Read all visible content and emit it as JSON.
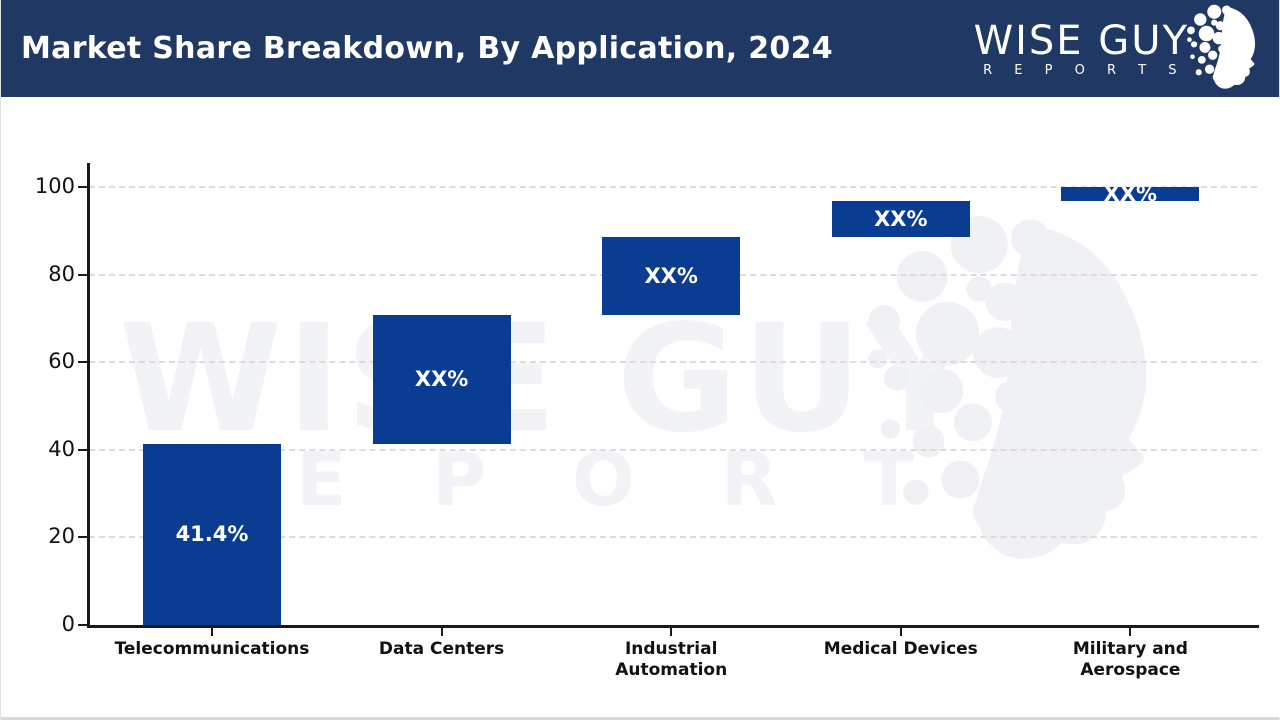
{
  "header": {
    "title": "Market Share Breakdown, By Application, 2024",
    "logo": {
      "brand_line1": "WISE GUY",
      "brand_line2": "R E P O R T S"
    }
  },
  "watermark": {
    "line1": "WISE GUY",
    "line2": "R E P O R T S"
  },
  "chart_data": {
    "type": "bar",
    "subtype": "waterfall",
    "title": "Market Share Breakdown, By Application, 2024",
    "categories": [
      "Telecommunications",
      "Data Centers",
      "Industrial Automation",
      "Medical Devices",
      "Military and Aerospace"
    ],
    "bars": [
      {
        "category": "Telecommunications",
        "tick_label": "Telecommunications",
        "start": 0,
        "end": 41.4,
        "value": 41.4,
        "label": "41.4%"
      },
      {
        "category": "Data Centers",
        "tick_label": "Data Centers",
        "start": 41.4,
        "end": 70.8,
        "value": 29.4,
        "label": "XX%"
      },
      {
        "category": "Industrial Automation",
        "tick_label": "Industrial\nAutomation",
        "start": 70.8,
        "end": 88.6,
        "value": 17.8,
        "label": "XX%"
      },
      {
        "category": "Medical Devices",
        "tick_label": "Medical Devices",
        "start": 88.6,
        "end": 96.8,
        "value": 8.2,
        "label": "XX%"
      },
      {
        "category": "Military and Aerospace",
        "tick_label": "Military and\nAerospace",
        "start": 96.8,
        "end": 100,
        "value": 3.2,
        "label": "XX%"
      }
    ],
    "yticks": [
      0,
      20,
      40,
      60,
      80,
      100
    ],
    "ylim": [
      0,
      105
    ],
    "xlabel": "",
    "ylabel": "",
    "grid": "horizontal-dashed",
    "legend": "none",
    "bar_color": "#0a3d91",
    "bar_label_color": "#ffffff"
  },
  "colors": {
    "header_bg": "#1f3864",
    "bar": "#0a3d91",
    "grid": "#dcdcdc",
    "axis": "#1a1a1a",
    "watermark": "#f2f3f6"
  }
}
